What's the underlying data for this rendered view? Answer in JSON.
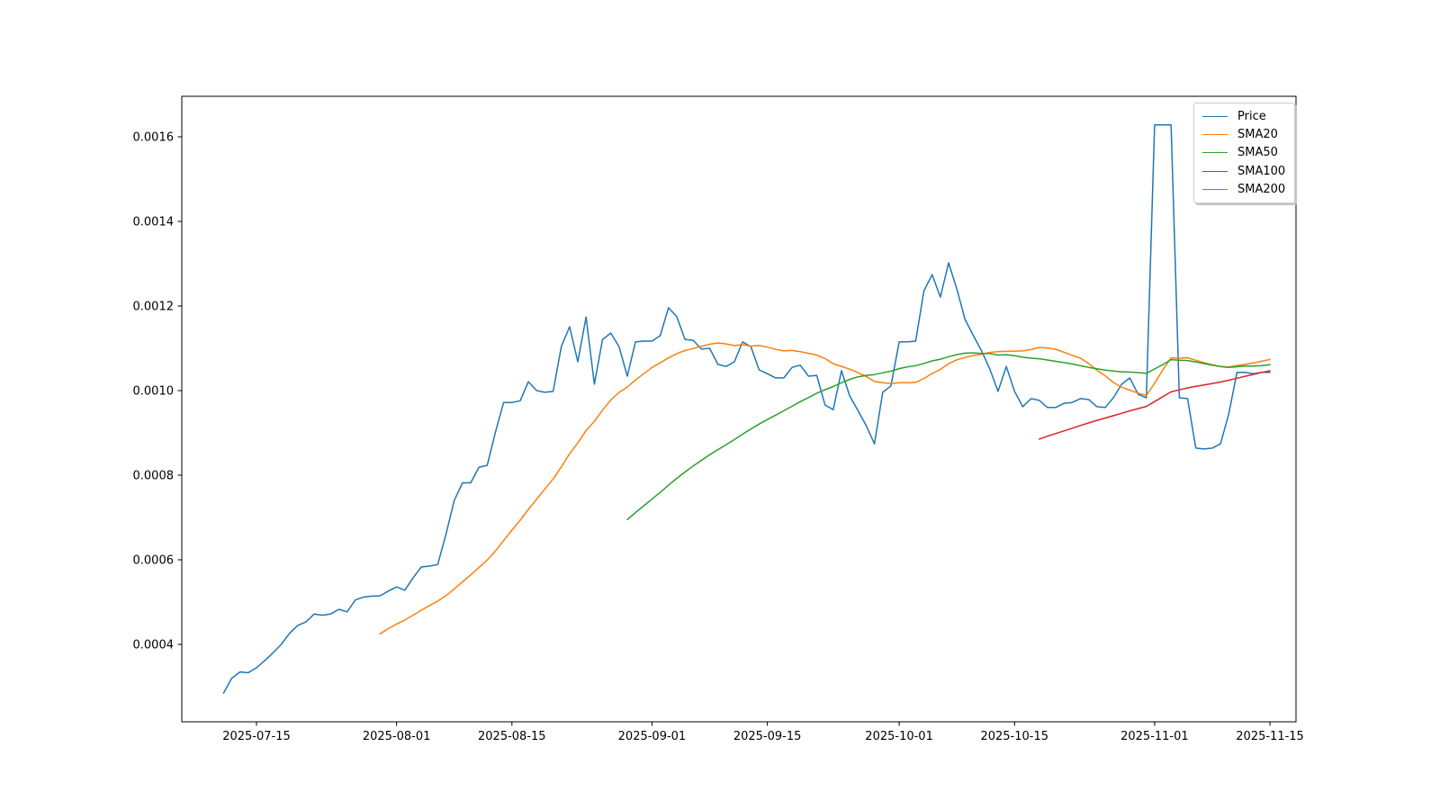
{
  "figure": {
    "background": "#ffffff",
    "legend_location": "upper right"
  },
  "chart_data": {
    "type": "line",
    "title": "",
    "xlabel": "",
    "ylabel": "",
    "grid": false,
    "x_tick_labels": [
      "2025-07-15",
      "2025-08-01",
      "2025-08-15",
      "2025-09-01",
      "2025-09-15",
      "2025-10-01",
      "2025-10-15",
      "2025-11-01",
      "2025-11-15"
    ],
    "y_tick_labels": [
      "0.0004",
      "0.0006",
      "0.0008",
      "0.0010",
      "0.0012",
      "0.0014",
      "0.0016"
    ],
    "xlim": [
      "2025-07-06",
      "2025-11-18"
    ],
    "ylim": [
      0.000217,
      0.001696
    ],
    "legend": [
      "Price",
      "SMA20",
      "SMA50",
      "SMA100",
      "SMA200"
    ],
    "series": [
      {
        "name": "Price",
        "color": "#1f77b4",
        "kind": "raw",
        "start_date": "2025-07-11",
        "freq": "daily",
        "values": [
          0.000285,
          0.00032,
          0.000335,
          0.000333,
          0.000345,
          0.000362,
          0.00038,
          0.0004,
          0.000426,
          0.000445,
          0.000453,
          0.000472,
          0.000469,
          0.000472,
          0.000483,
          0.000477,
          0.000505,
          0.000512,
          0.000514,
          0.000515,
          0.000526,
          0.000536,
          0.000528,
          0.000557,
          0.000583,
          0.000585,
          0.000589,
          0.000661,
          0.00074,
          0.000782,
          0.000782,
          0.000819,
          0.000823,
          0.000902,
          0.000972,
          0.000972,
          0.000976,
          0.001021,
          0.001,
          0.000996,
          0.000998,
          0.001104,
          0.001151,
          0.001068,
          0.001174,
          0.001015,
          0.001121,
          0.001136,
          0.001104,
          0.001034,
          0.001115,
          0.001117,
          0.001117,
          0.00113,
          0.001196,
          0.001175,
          0.001121,
          0.001119,
          0.001098,
          0.0011,
          0.001062,
          0.001057,
          0.001068,
          0.001115,
          0.001104,
          0.001049,
          0.00104,
          0.00103,
          0.00103,
          0.001055,
          0.00106,
          0.001034,
          0.001036,
          0.000966,
          0.000955,
          0.001047,
          0.000987,
          0.000953,
          0.000917,
          0.000874,
          0.000996,
          0.001011,
          0.001115,
          0.001115,
          0.001117,
          0.001236,
          0.001274,
          0.001221,
          0.001302,
          0.00124,
          0.001168,
          0.00113,
          0.001094,
          0.001051,
          0.000998,
          0.001057,
          0.000998,
          0.000962,
          0.000981,
          0.000977,
          0.00096,
          0.00096,
          0.00097,
          0.000972,
          0.000981,
          0.000979,
          0.000962,
          0.00096,
          0.000983,
          0.001015,
          0.00103,
          0.000991,
          0.000983,
          0.001628,
          0.001628,
          0.001628,
          0.000983,
          0.000981,
          0.000864,
          0.000862,
          0.000864,
          0.000874,
          0.000945,
          0.001043,
          0.001043,
          0.00104,
          0.001043,
          0.001043
        ]
      },
      {
        "name": "SMA20",
        "color": "#ff7f0e",
        "kind": "sma",
        "window": 20
      },
      {
        "name": "SMA50",
        "color": "#2ca02c",
        "kind": "sma",
        "window": 50
      },
      {
        "name": "SMA100",
        "color": "#d62728",
        "kind": "sma",
        "window": 100
      },
      {
        "name": "SMA200",
        "color": "#9467bd",
        "kind": "sma",
        "window": 200
      }
    ]
  }
}
